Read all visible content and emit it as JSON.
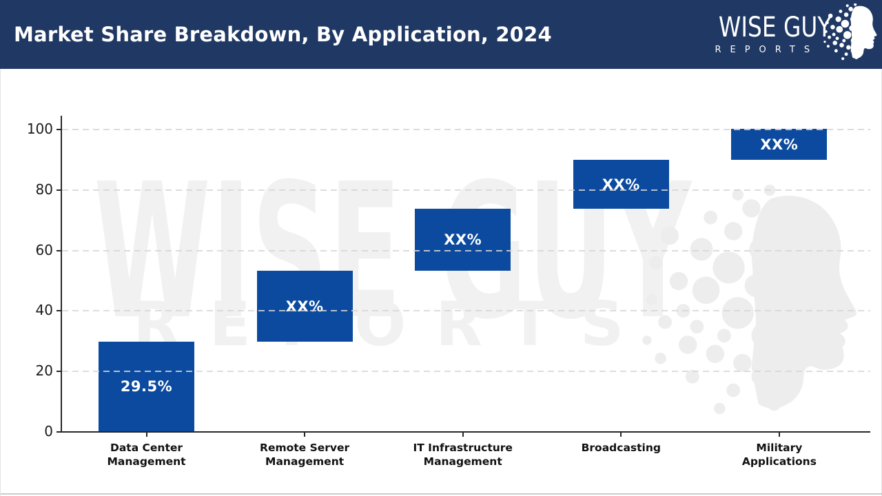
{
  "header": {
    "title": "Market Share Breakdown, By Application, 2024",
    "logo": {
      "wordmark": "WISE GUY",
      "subtext": "REPORTS"
    }
  },
  "watermark": {
    "wordmark": "WISE GUY",
    "subtext": "REPORTS"
  },
  "colors": {
    "header_bg": "#1f3864",
    "bar": "#0b4a9e",
    "axis": "#262626",
    "grid": "#d6d6d6",
    "watermark": "#f1f1f1"
  },
  "chart_data": {
    "type": "bar",
    "subtype": "floating-waterfall",
    "title": "Market Share Breakdown, By Application, 2024",
    "categories": [
      "Data Center Management",
      "Remote Server Management",
      "IT Infrastructure Management",
      "Broadcasting",
      "Military Applications"
    ],
    "segments": [
      {
        "category": "Data Center Management",
        "start": 0,
        "end": 29.5,
        "label": "29.5%"
      },
      {
        "category": "Remote Server Management",
        "start": 29.5,
        "end": 53,
        "label": "XX%"
      },
      {
        "category": "IT Infrastructure Management",
        "start": 53,
        "end": 73.5,
        "label": "XX%"
      },
      {
        "category": "Broadcasting",
        "start": 73.5,
        "end": 89.7,
        "label": "XX%"
      },
      {
        "category": "Military Applications",
        "start": 89.7,
        "end": 100,
        "label": "XX%"
      }
    ],
    "ylim": [
      0,
      100
    ],
    "yticks": [
      0,
      20,
      40,
      60,
      80,
      100
    ],
    "xlabel": "",
    "ylabel": "",
    "grid": "horizontal-dashed-over-bars",
    "legend": "none",
    "bar_color": "#0b4a9e"
  }
}
